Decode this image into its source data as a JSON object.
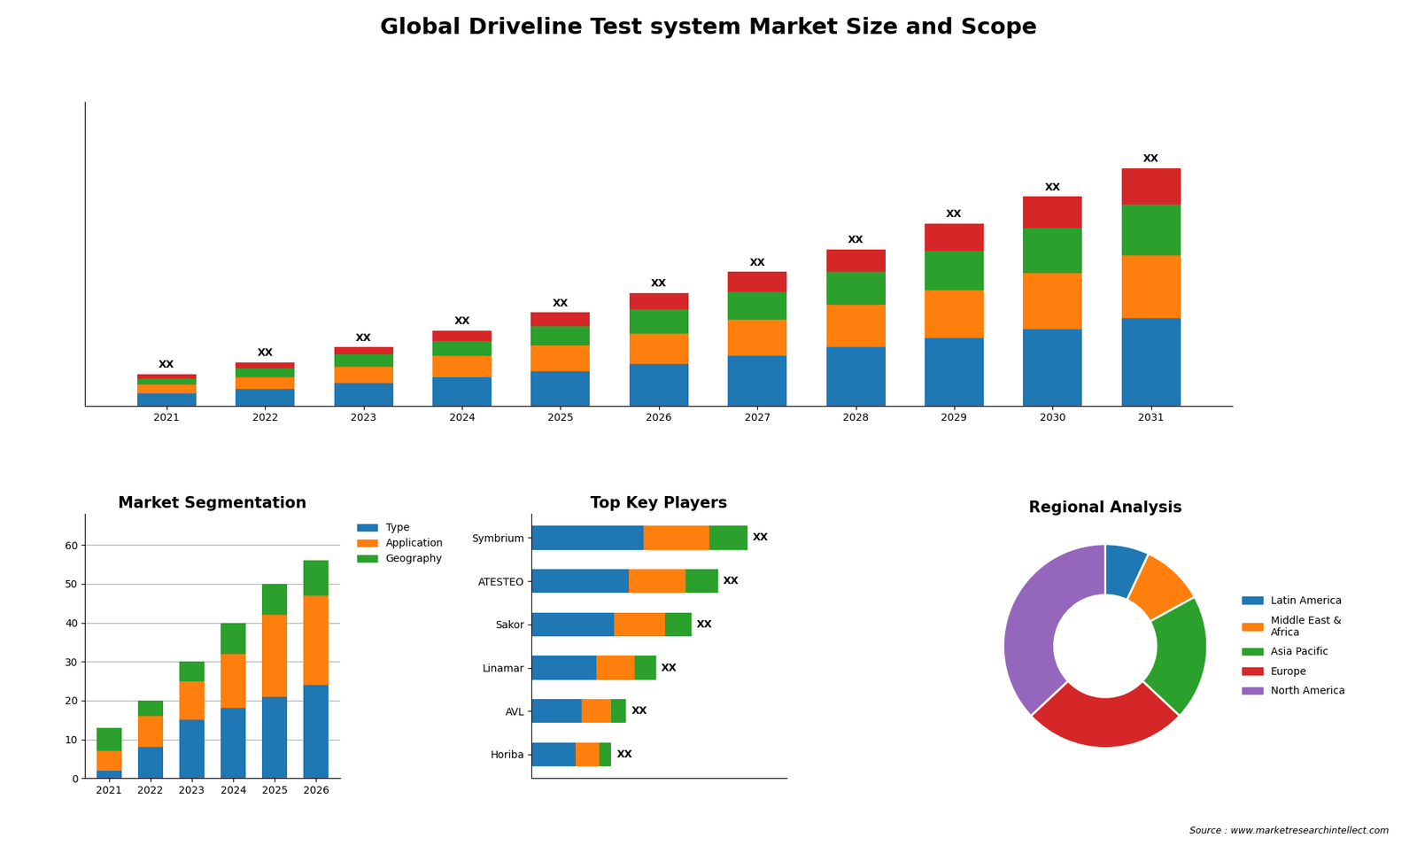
{
  "title": "Global Driveline Test system Market Size and Scope",
  "annotations": [
    {
      "text": "Source : www.marketresearchintellect.com"
    }
  ],
  "chart_data": [
    {
      "type": "bar",
      "stacked": true,
      "categories": [
        "2021",
        "2022",
        "2023",
        "2024",
        "2025",
        "2026",
        "2027",
        "2028",
        "2029",
        "2030",
        "2031"
      ],
      "series": [
        {
          "values": [
            0.8,
            1.1,
            1.5,
            1.9,
            2.3,
            2.8,
            3.3,
            3.9,
            4.5,
            5.1,
            5.8
          ]
        },
        {
          "values": [
            0.6,
            0.8,
            1.1,
            1.4,
            1.7,
            2.0,
            2.4,
            2.8,
            3.2,
            3.7,
            4.2
          ]
        },
        {
          "values": [
            0.4,
            0.6,
            0.8,
            1.0,
            1.3,
            1.6,
            1.9,
            2.2,
            2.6,
            3.0,
            3.4
          ]
        },
        {
          "values": [
            0.3,
            0.4,
            0.5,
            0.7,
            0.9,
            1.1,
            1.3,
            1.5,
            1.8,
            2.1,
            2.4
          ]
        }
      ],
      "ylim": [
        0,
        20.224
      ],
      "tick_labels": "x",
      "annotations": [
        {
          "category": "2021",
          "text": "XX"
        },
        {
          "category": "2022",
          "text": "XX"
        },
        {
          "category": "2023",
          "text": "XX"
        },
        {
          "category": "2024",
          "text": "XX"
        },
        {
          "category": "2025",
          "text": "XX"
        },
        {
          "category": "2026",
          "text": "XX"
        },
        {
          "category": "2027",
          "text": "XX"
        },
        {
          "category": "2028",
          "text": "XX"
        },
        {
          "category": "2029",
          "text": "XX"
        },
        {
          "category": "2030",
          "text": "XX"
        },
        {
          "category": "2031",
          "text": "XX"
        }
      ]
    },
    {
      "type": "bar",
      "title": "Market Segmentation",
      "stacked": true,
      "categories": [
        "2021",
        "2022",
        "2023",
        "2024",
        "2025",
        "2026"
      ],
      "series": [
        {
          "name": "Type",
          "values": [
            2,
            8,
            15,
            18,
            21,
            24
          ]
        },
        {
          "name": "Application",
          "values": [
            5,
            8,
            10,
            14,
            21,
            23
          ]
        },
        {
          "name": "Geography",
          "values": [
            6,
            4,
            5,
            8,
            8,
            9
          ]
        }
      ],
      "ylim": [
        0,
        68
      ],
      "yticks": [
        0,
        10,
        20,
        30,
        40,
        50,
        60
      ],
      "grid": true,
      "legend": "upper left"
    },
    {
      "type": "bar",
      "title": "Top Key Players",
      "orientation": "horizontal",
      "stacked": true,
      "categories": [
        "Symbrium",
        "ATESTEO",
        "Sakor",
        "Linamar",
        "AVL",
        "Horiba"
      ],
      "series": [
        {
          "values": [
            38,
            33,
            28,
            22,
            17,
            15
          ]
        },
        {
          "values": [
            22,
            19,
            17,
            13,
            10,
            8
          ]
        },
        {
          "values": [
            13,
            11,
            9,
            7,
            5,
            4
          ]
        }
      ],
      "xlim": [
        0,
        86.14
      ],
      "tick_labels": "y",
      "annotations": [
        {
          "category": "Symbrium",
          "text": "XX"
        },
        {
          "category": "ATESTEO",
          "text": "XX"
        },
        {
          "category": "Sakor",
          "text": "XX"
        },
        {
          "category": "Linamar",
          "text": "XX"
        },
        {
          "category": "AVL",
          "text": "XX"
        },
        {
          "category": "Horiba",
          "text": "XX"
        }
      ]
    },
    {
      "type": "pie",
      "title": "Regional Analysis",
      "categories": [
        "Latin America",
        "Middle East &\nAfrica",
        "Asia Pacific",
        "Europe",
        "North America"
      ],
      "values": [
        7,
        10,
        20,
        26,
        37
      ],
      "legend": "center left"
    }
  ]
}
